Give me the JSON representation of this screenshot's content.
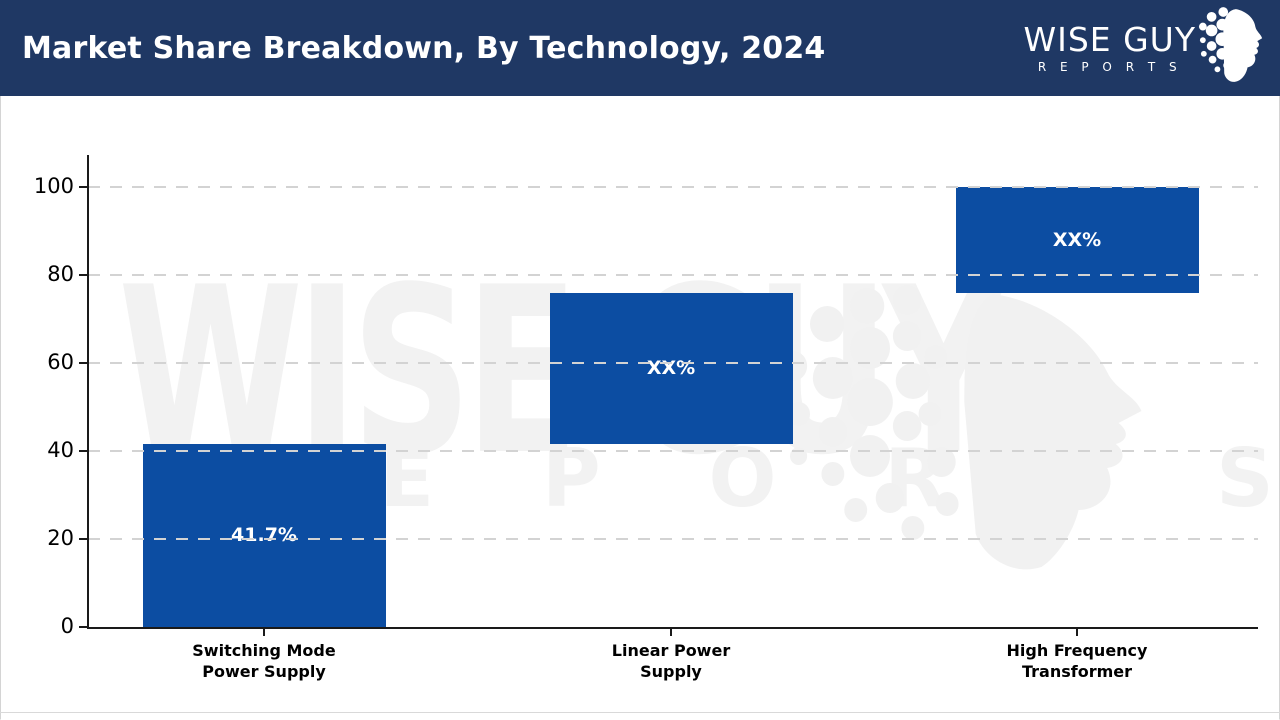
{
  "header": {
    "title": "Market Share Breakdown, By Technology, 2024",
    "logo": {
      "name": "WISE GUY",
      "sub": "R E P O R T S"
    }
  },
  "watermark": {
    "line1": "WISE GUY",
    "line2": "R E P O R T S"
  },
  "chart_data": {
    "type": "bar",
    "variant": "floating-waterfall-breakdown",
    "title": "Market Share Breakdown, By Technology, 2024",
    "categories": [
      [
        "Switching Mode",
        "Power Supply"
      ],
      [
        "Linear Power",
        "Supply"
      ],
      [
        "High Frequency",
        "Transformer"
      ]
    ],
    "segments": [
      {
        "category": "Switching Mode Power Supply",
        "from": 0,
        "to": 41.7,
        "label": "41.7%"
      },
      {
        "category": "Linear Power Supply",
        "from": 41.7,
        "to": 76,
        "label": "XX%"
      },
      {
        "category": "High Frequency Transformer",
        "from": 76,
        "to": 100,
        "label": "XX%"
      }
    ],
    "value_labels": [
      "41.7%",
      "XX%",
      "XX%"
    ],
    "ylim": [
      0,
      100
    ],
    "yticks": [
      0,
      20,
      40,
      60,
      80,
      100
    ],
    "grid": {
      "horizontal": true,
      "style": "dashed",
      "color": "#d3d3d3"
    },
    "legend": null,
    "bar_color": "#0C4DA2",
    "bar_label_color": "#ffffff",
    "axis_color": "#1a1a1a",
    "header_bg": "#1F3864",
    "watermark_color": "#f2f2f2"
  }
}
